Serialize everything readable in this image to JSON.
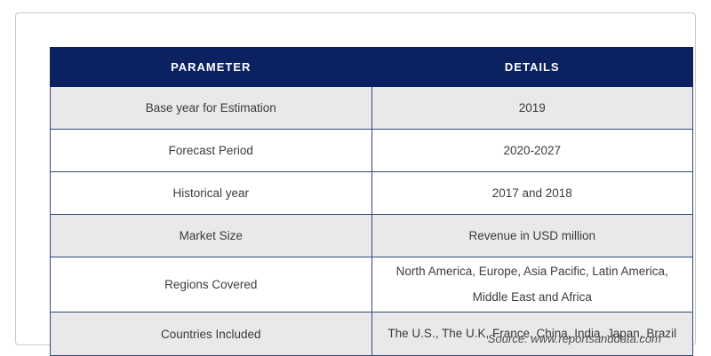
{
  "chart_data": {
    "type": "table",
    "columns": [
      "PARAMETER",
      "DETAILS"
    ],
    "rows": [
      [
        "Base year for Estimation",
        "2019"
      ],
      [
        "Forecast Period",
        "2020-2027"
      ],
      [
        "Historical year",
        "2017 and 2018"
      ],
      [
        "Market Size",
        "Revenue in USD million"
      ],
      [
        "Regions Covered",
        "North America, Europe, Asia Pacific, Latin America, Middle East and Africa"
      ],
      [
        "Countries Included",
        "The U.S., The  U.K, France, China, India, Japan, Brazil"
      ]
    ],
    "source": "Source: www.reportsanddata.com",
    "layout_hints": {
      "shaded_rows": [
        0,
        3,
        5
      ],
      "header_position": "top",
      "text_align": "center"
    }
  },
  "colors": {
    "header_bg": "#0b2161",
    "header_text": "#ffffff",
    "row_shaded_bg": "#e9e9e9",
    "row_plain_bg": "#ffffff",
    "cell_border": "#31497c",
    "cell_text": "#3c3c3c",
    "card_border": "#c9c9c9",
    "source_text": "#4d4d4d"
  }
}
